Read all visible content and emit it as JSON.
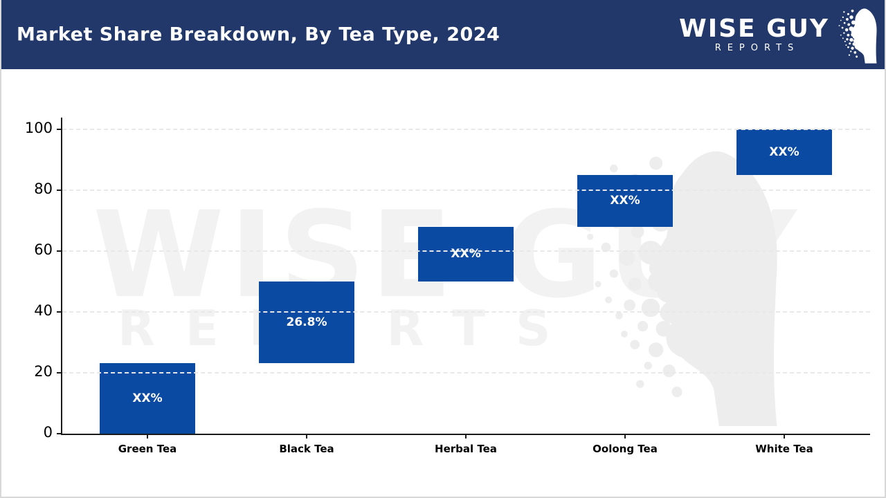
{
  "header": {
    "title": "Market Share Breakdown, By Tea Type, 2024",
    "logo": {
      "line1": "WISE GUY",
      "line2": "REPORTS",
      "icon": "dotted-face-profile"
    }
  },
  "watermark": {
    "line1": "WISE GUY",
    "line2": "REPORTS",
    "icon": "dotted-face-profile"
  },
  "colors": {
    "header_bg": "#22386B",
    "bar": "#0B4AA2",
    "grid": "#E8E8E8",
    "axis": "#1A1A1A",
    "bar_label": "#FFFFFF",
    "watermark": "#F2F2F2"
  },
  "chart_data": {
    "type": "bar",
    "subtype": "waterfall",
    "title": "Market Share Breakdown, By Tea Type, 2024",
    "xlabel": "",
    "ylabel": "",
    "categories": [
      "Green Tea",
      "Black Tea",
      "Herbal Tea",
      "Oolong Tea",
      "White Tea"
    ],
    "segments": [
      {
        "category": "Green Tea",
        "start": 0,
        "end": 23.2,
        "label": "XX%"
      },
      {
        "category": "Black Tea",
        "start": 23.2,
        "end": 50,
        "label": "26.8%"
      },
      {
        "category": "Herbal Tea",
        "start": 50,
        "end": 68,
        "label": "XX%"
      },
      {
        "category": "Oolong Tea",
        "start": 68,
        "end": 85,
        "label": "XX%"
      },
      {
        "category": "White Tea",
        "start": 85,
        "end": 100,
        "label": "XX%"
      }
    ],
    "y_ticks": [
      0,
      20,
      40,
      60,
      80,
      100
    ],
    "ylim": [
      0,
      104
    ],
    "grid": "horizontal-dashed-over-bars",
    "legend": "none",
    "bar_color": "#0B4AA2"
  }
}
